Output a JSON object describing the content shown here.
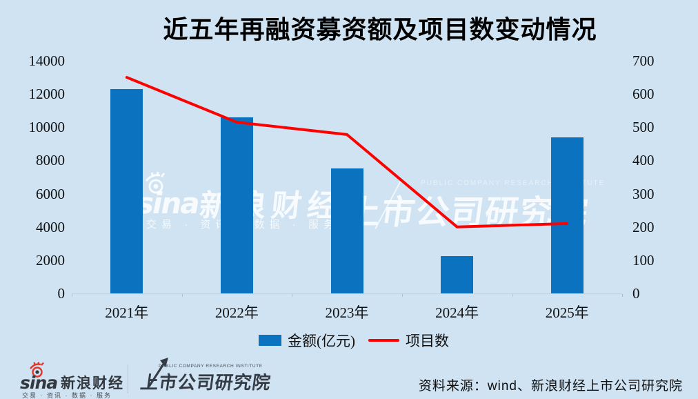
{
  "title": "近五年再融资募资额及项目数变动情况",
  "chart_data": {
    "type": "bar",
    "subtype": "bar+line combo, dual axis",
    "categories": [
      "2021年",
      "2022年",
      "2023年",
      "2024年",
      "2025年"
    ],
    "series": [
      {
        "name": "金额(亿元)",
        "type": "bar",
        "axis": "left",
        "values": [
          12300,
          10600,
          7500,
          2250,
          9400
        ],
        "color": "#0a72be"
      },
      {
        "name": "项目数",
        "type": "line",
        "axis": "right",
        "values": [
          650,
          515,
          478,
          200,
          210
        ],
        "color": "#fe0000"
      }
    ],
    "left_axis": {
      "min": 0,
      "max": 14000,
      "step": 2000,
      "labels": [
        "14000",
        "12000",
        "10000",
        "8000",
        "6000",
        "4000",
        "2000",
        "0"
      ]
    },
    "right_axis": {
      "min": 0,
      "max": 700,
      "step": 100,
      "labels": [
        "700",
        "600",
        "500",
        "400",
        "300",
        "200",
        "100",
        "0"
      ]
    },
    "grid": false,
    "legend_position": "bottom"
  },
  "legend": {
    "amount_label": "金额(亿元)",
    "projects_label": "项目数"
  },
  "watermarks": {
    "sina": {
      "brand": "sina",
      "main": "新浪财经",
      "tagline": "交易 · 资讯 · 数据 · 服务"
    },
    "institute": {
      "en": "PUBLIC COMPANY RESEARCH INSTITUTE",
      "main": "上市公司研究院"
    }
  },
  "footer": {
    "sina": {
      "brand": "sina",
      "name": "新浪财经",
      "tagline": "交易 · 资讯 · 数据 · 服务"
    },
    "institute": {
      "en": "PUBLIC COMPANY RESEARCH INSTITUTE",
      "name": "上市公司研究院"
    },
    "source": "资料来源：wind、新浪财经上市公司研究院"
  },
  "colors": {
    "background": "#cfe3f2",
    "bar": "#0a72be",
    "line": "#fe0000",
    "sina_red": "#e0352b",
    "logo_charcoal": "#33383f"
  }
}
